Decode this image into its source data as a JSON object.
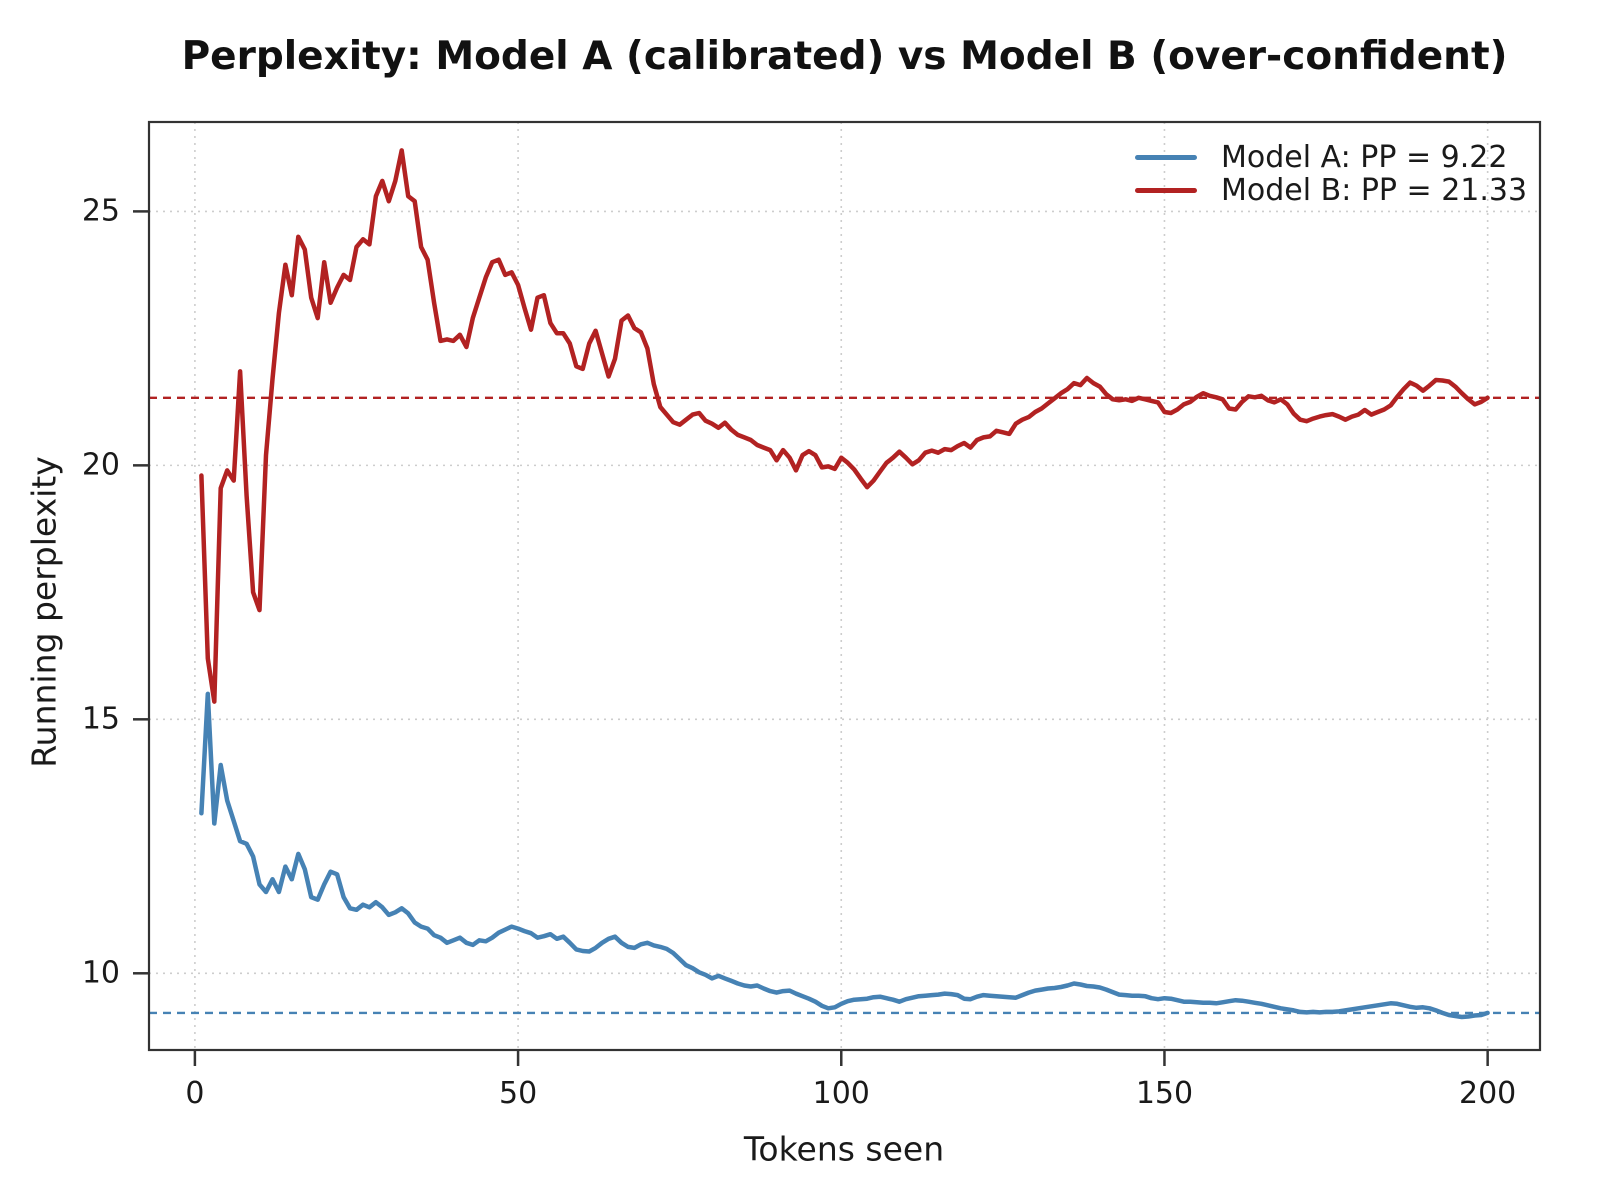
{
  "page": {
    "background": "#ffffff"
  },
  "chart_data": {
    "type": "line",
    "title": "Perplexity: Model A (calibrated) vs Model B (over-confident)",
    "xlabel": "Tokens seen",
    "ylabel": "Running perplexity",
    "x_ticks": [
      0,
      50,
      100,
      150,
      200
    ],
    "y_ticks": [
      10,
      15,
      20,
      25
    ],
    "xlim": [
      -7.1,
      208.1
    ],
    "ylim": [
      8.49,
      26.76
    ],
    "grid": true,
    "grid_color": "#cdcdcd",
    "frame_color": "#333333",
    "legend_position": "upper right",
    "x_start": 1,
    "x_step": 1,
    "series": [
      {
        "name": "Model A",
        "legend_label": "Model A: PP = 9.22",
        "final_pp": 9.22,
        "reference_line": 9.22,
        "color": "#4682b4",
        "values": [
          13.15,
          15.5,
          12.95,
          14.1,
          13.4,
          13.0,
          12.6,
          12.55,
          12.3,
          11.75,
          11.6,
          11.85,
          11.6,
          12.1,
          11.85,
          12.35,
          12.05,
          11.5,
          11.45,
          11.75,
          12.0,
          11.95,
          11.5,
          11.28,
          11.25,
          11.35,
          11.3,
          11.4,
          11.3,
          11.15,
          11.2,
          11.28,
          11.18,
          11.0,
          10.92,
          10.88,
          10.75,
          10.7,
          10.6,
          10.65,
          10.7,
          10.6,
          10.56,
          10.65,
          10.63,
          10.7,
          10.8,
          10.86,
          10.92,
          10.88,
          10.83,
          10.79,
          10.7,
          10.73,
          10.77,
          10.68,
          10.72,
          10.6,
          10.47,
          10.44,
          10.43,
          10.5,
          10.6,
          10.68,
          10.72,
          10.6,
          10.52,
          10.5,
          10.57,
          10.6,
          10.55,
          10.52,
          10.48,
          10.4,
          10.28,
          10.16,
          10.1,
          10.02,
          9.97,
          9.9,
          9.95,
          9.9,
          9.85,
          9.8,
          9.76,
          9.74,
          9.76,
          9.7,
          9.65,
          9.62,
          9.65,
          9.66,
          9.6,
          9.55,
          9.5,
          9.44,
          9.36,
          9.31,
          9.33,
          9.4,
          9.45,
          9.48,
          9.49,
          9.5,
          9.53,
          9.54,
          9.51,
          9.48,
          9.44,
          9.49,
          9.52,
          9.55,
          9.56,
          9.57,
          9.58,
          9.6,
          9.59,
          9.57,
          9.5,
          9.49,
          9.54,
          9.57,
          9.56,
          9.55,
          9.54,
          9.53,
          9.52,
          9.57,
          9.62,
          9.66,
          9.68,
          9.7,
          9.71,
          9.73,
          9.76,
          9.8,
          9.78,
          9.75,
          9.74,
          9.72,
          9.68,
          9.63,
          9.58,
          9.57,
          9.56,
          9.56,
          9.55,
          9.51,
          9.49,
          9.51,
          9.5,
          9.47,
          9.44,
          9.44,
          9.43,
          9.42,
          9.42,
          9.41,
          9.43,
          9.45,
          9.47,
          9.46,
          9.44,
          9.42,
          9.4,
          9.37,
          9.34,
          9.31,
          9.29,
          9.27,
          9.24,
          9.23,
          9.24,
          9.23,
          9.24,
          9.24,
          9.25,
          9.27,
          9.29,
          9.31,
          9.33,
          9.35,
          9.37,
          9.39,
          9.41,
          9.4,
          9.37,
          9.34,
          9.32,
          9.33,
          9.31,
          9.27,
          9.22,
          9.18,
          9.16,
          9.14,
          9.15,
          9.17,
          9.18,
          9.22
        ]
      },
      {
        "name": "Model B",
        "legend_label": "Model B: PP = 21.33",
        "final_pp": 21.33,
        "reference_line": 21.33,
        "color": "#b22222",
        "values": [
          19.8,
          16.2,
          15.35,
          19.55,
          19.9,
          19.7,
          21.85,
          19.4,
          17.5,
          17.15,
          20.2,
          21.7,
          23.0,
          23.95,
          23.35,
          24.5,
          24.25,
          23.3,
          22.9,
          24.0,
          23.2,
          23.5,
          23.75,
          23.65,
          24.3,
          24.45,
          24.35,
          25.3,
          25.6,
          25.2,
          25.6,
          26.2,
          25.3,
          25.2,
          24.3,
          24.05,
          23.2,
          22.45,
          22.48,
          22.45,
          22.57,
          22.33,
          22.9,
          23.3,
          23.7,
          24.0,
          24.05,
          23.75,
          23.8,
          23.55,
          23.1,
          22.67,
          23.3,
          23.35,
          22.8,
          22.6,
          22.6,
          22.4,
          21.95,
          21.9,
          22.4,
          22.65,
          22.2,
          21.75,
          22.1,
          22.85,
          22.95,
          22.7,
          22.62,
          22.3,
          21.6,
          21.15,
          21.0,
          20.85,
          20.8,
          20.9,
          21.0,
          21.03,
          20.88,
          20.82,
          20.74,
          20.84,
          20.7,
          20.6,
          20.55,
          20.5,
          20.4,
          20.35,
          20.3,
          20.1,
          20.3,
          20.15,
          19.9,
          20.2,
          20.28,
          20.2,
          19.96,
          19.98,
          19.93,
          20.15,
          20.05,
          19.92,
          19.74,
          19.57,
          19.7,
          19.88,
          20.05,
          20.15,
          20.27,
          20.15,
          20.02,
          20.1,
          20.25,
          20.29,
          20.25,
          20.32,
          20.3,
          20.38,
          20.44,
          20.35,
          20.5,
          20.55,
          20.57,
          20.68,
          20.65,
          20.62,
          20.82,
          20.9,
          20.95,
          21.05,
          21.12,
          21.22,
          21.32,
          21.42,
          21.5,
          21.62,
          21.58,
          21.72,
          21.62,
          21.55,
          21.4,
          21.3,
          21.28,
          21.3,
          21.27,
          21.33,
          21.3,
          21.27,
          21.24,
          21.05,
          21.03,
          21.1,
          21.2,
          21.25,
          21.35,
          21.42,
          21.37,
          21.34,
          21.3,
          21.12,
          21.1,
          21.25,
          21.36,
          21.34,
          21.37,
          21.28,
          21.24,
          21.3,
          21.2,
          21.02,
          20.9,
          20.87,
          20.92,
          20.96,
          20.99,
          21.01,
          20.96,
          20.9,
          20.96,
          21.0,
          21.09,
          21.0,
          21.05,
          21.1,
          21.18,
          21.35,
          21.5,
          21.63,
          21.57,
          21.47,
          21.57,
          21.68,
          21.67,
          21.65,
          21.55,
          21.42,
          21.3,
          21.2,
          21.25,
          21.33
        ]
      }
    ]
  }
}
